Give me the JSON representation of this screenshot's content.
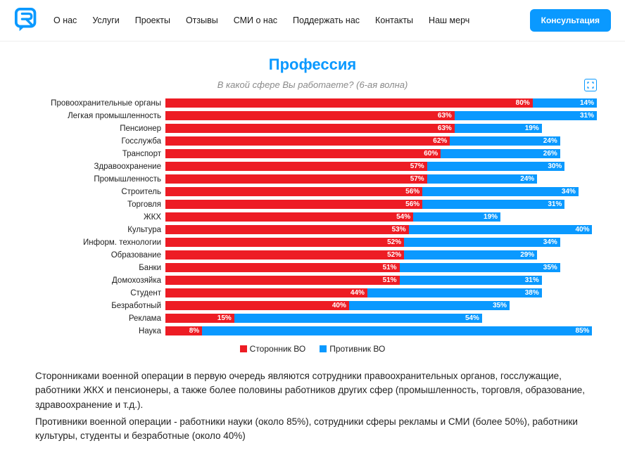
{
  "nav": {
    "items": [
      "О нас",
      "Услуги",
      "Проекты",
      "Отзывы",
      "СМИ о нас",
      "Поддержать нас",
      "Контакты",
      "Наш мерч"
    ],
    "cta": "Консультация"
  },
  "chart": {
    "type": "bar",
    "title": "Профессия",
    "subtitle": "В какой сфере Вы работаете? (6-ая волна)",
    "colors": {
      "red": "#ed1c24",
      "blue": "#0a99ff"
    },
    "title_color": "#0a99ff",
    "subtitle_color": "#8a8a8a",
    "title_fontsize": 22,
    "subtitle_fontsize": 13,
    "label_fontsize": 11.5,
    "value_fontsize": 10,
    "max_total_pct": 94,
    "rows": [
      {
        "label": "Провоохранительные органы",
        "red": 80,
        "blue": 14
      },
      {
        "label": "Легкая промышленность",
        "red": 63,
        "blue": 31
      },
      {
        "label": "Пенсионер",
        "red": 63,
        "blue": 19
      },
      {
        "label": "Госслужба",
        "red": 62,
        "blue": 24
      },
      {
        "label": "Транспорт",
        "red": 60,
        "blue": 26
      },
      {
        "label": "Здравоохранение",
        "red": 57,
        "blue": 30
      },
      {
        "label": "Промышленность",
        "red": 57,
        "blue": 24
      },
      {
        "label": "Строитель",
        "red": 56,
        "blue": 34
      },
      {
        "label": "Торговля",
        "red": 56,
        "blue": 31
      },
      {
        "label": "ЖКХ",
        "red": 54,
        "blue": 19
      },
      {
        "label": "Культура",
        "red": 53,
        "blue": 40
      },
      {
        "label": "Информ. технологии",
        "red": 52,
        "blue": 34
      },
      {
        "label": "Образование",
        "red": 52,
        "blue": 29
      },
      {
        "label": "Банки",
        "red": 51,
        "blue": 35
      },
      {
        "label": "Домохозяйка",
        "red": 51,
        "blue": 31
      },
      {
        "label": "Студент",
        "red": 44,
        "blue": 38
      },
      {
        "label": "Безработный",
        "red": 40,
        "blue": 35
      },
      {
        "label": "Реклама",
        "red": 15,
        "blue": 54
      },
      {
        "label": "Наука",
        "red": 8,
        "blue": 85
      }
    ],
    "legend": {
      "red": "Сторонник ВО",
      "blue": "Противник ВО"
    }
  },
  "body": {
    "p1": "Сторонниками военной операции в первую очередь являются сотрудники правоохранительных органов, госслужащие, работники ЖКХ и пенсионеры, а также более половины работников других сфер (промышленность, торговля, образование, здравоохранение и т.д.).",
    "p2": "Противники военной операции - работники науки (около 85%), сотрудники сферы рекламы и СМИ (более 50%), работники культуры, студенты и безработные (около 40%)"
  }
}
